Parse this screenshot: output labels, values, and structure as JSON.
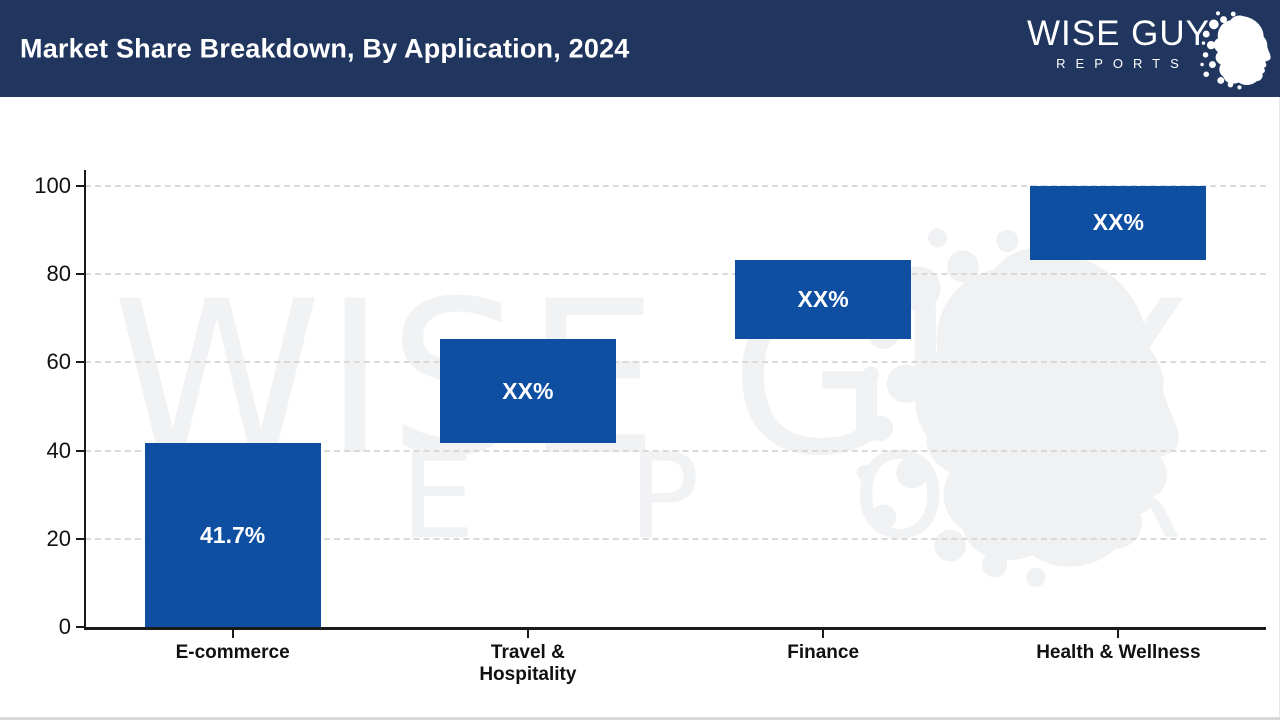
{
  "header": {
    "title": "Market Share Breakdown, By Application, 2024",
    "bg_color": "#21365f",
    "logo": {
      "line1": "WISE GUY",
      "line2": "REPORTS"
    }
  },
  "watermark": {
    "line1": "WISE GUY",
    "line2": "R E P O R T S"
  },
  "chart_data": {
    "type": "bar",
    "variant": "waterfall-stacked-progression",
    "title": "Market Share Breakdown, By Application, 2024",
    "categories": [
      "E-commerce",
      "Travel &\nHospitality",
      "Finance",
      "Health & Wellness"
    ],
    "bars": [
      {
        "category": "E-commerce",
        "start": 0,
        "end": 41.7,
        "label": "41.7%"
      },
      {
        "category": "Travel &\nHospitality",
        "start": 41.7,
        "end": 65.2,
        "label": "XX%"
      },
      {
        "category": "Finance",
        "start": 65.2,
        "end": 83.3,
        "label": "XX%"
      },
      {
        "category": "Health & Wellness",
        "start": 83.3,
        "end": 100,
        "label": "XX%"
      }
    ],
    "ylim": [
      0,
      100
    ],
    "yticks": [
      0,
      20,
      40,
      60,
      80,
      100
    ],
    "xlabel": "",
    "ylabel": "",
    "grid": "horizontal-dashed",
    "legend": "none",
    "bar_color": "#0e4fa2",
    "bar_label_color": "#ffffff",
    "axis_color": "#1a1a1a",
    "grid_color": "#d9d9d9"
  }
}
